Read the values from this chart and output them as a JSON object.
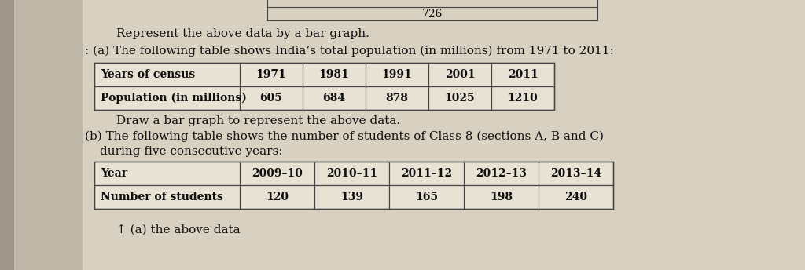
{
  "title_top": "Represent the above data by a bar graph.",
  "part_a_label": ": (a) The following table shows India’s total population (in millions) from 1971 to 2011:",
  "table_a_headers": [
    "Years of census",
    "1971",
    "1981",
    "1991",
    "2001",
    "2011"
  ],
  "table_a_row": [
    "Population (in millions)",
    "605",
    "684",
    "878",
    "1025",
    "1210"
  ],
  "part_a_instruction": "Draw a bar graph to represent the above data.",
  "part_b_line1": "(b) The following table shows the number of students of Class 8 (sections A, B and C)",
  "part_b_line2": "during five consecutive years:",
  "table_b_headers": [
    "Year",
    "2009–10",
    "2010–11",
    "2011–12",
    "2012–13",
    "2013–14"
  ],
  "table_b_row": [
    "Number of students",
    "120",
    "139",
    "165",
    "198",
    "240"
  ],
  "bg_color": "#d8d0c0",
  "left_margin_color": "#b8b0a0",
  "text_color": "#111111",
  "table_border_color": "#444444",
  "table_bg": "#e8e2d4",
  "font_size_text": 11,
  "font_size_table": 10
}
